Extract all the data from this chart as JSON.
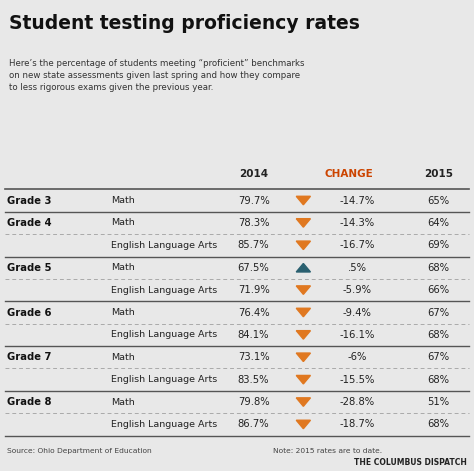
{
  "title": "Student testing proficiency rates",
  "subtitle": "Here’s the percentage of students meeting “proficient” benchmarks\non new state assessments given last spring and how they compare\nto less rigorous exams given the previous year.",
  "col_headers": [
    "2014",
    "CHANGE",
    "2015"
  ],
  "rows": [
    {
      "grade": "Grade 3",
      "subject": "Math",
      "val2014": "79.7%",
      "change": "-14.7%",
      "val2015": "65%",
      "arrow": "down",
      "grade_bold": true,
      "dashed_above": false
    },
    {
      "grade": "Grade 4",
      "subject": "Math",
      "val2014": "78.3%",
      "change": "-14.3%",
      "val2015": "64%",
      "arrow": "down",
      "grade_bold": true,
      "dashed_above": false
    },
    {
      "grade": "",
      "subject": "English Language Arts",
      "val2014": "85.7%",
      "change": "-16.7%",
      "val2015": "69%",
      "arrow": "down",
      "grade_bold": false,
      "dashed_above": true
    },
    {
      "grade": "Grade 5",
      "subject": "Math",
      "val2014": "67.5%",
      "change": ".5%",
      "val2015": "68%",
      "arrow": "up",
      "grade_bold": true,
      "dashed_above": false
    },
    {
      "grade": "",
      "subject": "English Language Arts",
      "val2014": "71.9%",
      "change": "-5.9%",
      "val2015": "66%",
      "arrow": "down",
      "grade_bold": false,
      "dashed_above": true
    },
    {
      "grade": "Grade 6",
      "subject": "Math",
      "val2014": "76.4%",
      "change": "-9.4%",
      "val2015": "67%",
      "arrow": "down",
      "grade_bold": true,
      "dashed_above": false
    },
    {
      "grade": "",
      "subject": "English Language Arts",
      "val2014": "84.1%",
      "change": "-16.1%",
      "val2015": "68%",
      "arrow": "down",
      "grade_bold": false,
      "dashed_above": true
    },
    {
      "grade": "Grade 7",
      "subject": "Math",
      "val2014": "73.1%",
      "change": "-6%",
      "val2015": "67%",
      "arrow": "down",
      "grade_bold": true,
      "dashed_above": false
    },
    {
      "grade": "",
      "subject": "English Language Arts",
      "val2014": "83.5%",
      "change": "-15.5%",
      "val2015": "68%",
      "arrow": "down",
      "grade_bold": false,
      "dashed_above": true
    },
    {
      "grade": "Grade 8",
      "subject": "Math",
      "val2014": "79.8%",
      "change": "-28.8%",
      "val2015": "51%",
      "arrow": "down",
      "grade_bold": true,
      "dashed_above": false
    },
    {
      "grade": "",
      "subject": "English Language Arts",
      "val2014": "86.7%",
      "change": "-18.7%",
      "val2015": "68%",
      "arrow": "down",
      "grade_bold": false,
      "dashed_above": true
    }
  ],
  "footer_left": "Source: Ohio Department of Education",
  "footer_right": "Note: 2015 rates are to date.",
  "brand": "THE COLUMBUS DISPATCH",
  "bg_color": "#e8e8e8",
  "arrow_down_color": "#e07820",
  "arrow_up_color": "#2a6070",
  "solid_line_color": "#555555",
  "dashed_line_color": "#aaaaaa",
  "title_color": "#111111",
  "text_color": "#222222",
  "grade_color": "#111111",
  "change_col_color": "#cc4400"
}
